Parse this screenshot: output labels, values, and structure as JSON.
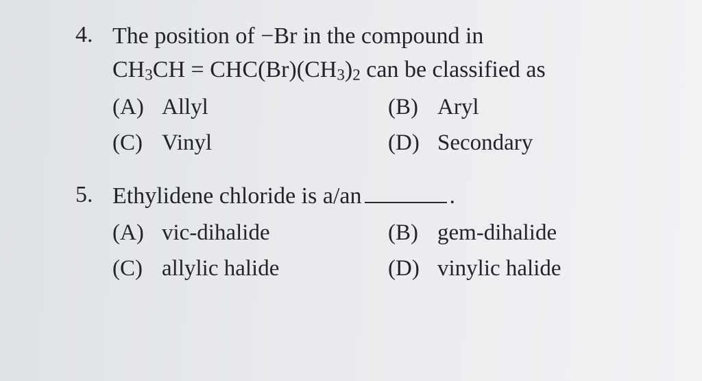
{
  "background_color": "#eceef0",
  "text_color": "#232428",
  "font_family": "Times New Roman",
  "base_fontsize_pt": 26,
  "questions": [
    {
      "number": "4.",
      "stem_html": "The position of &minus;Br in the compound in <span class=\"formula\">CH<sub>3</sub>CH = CHC(Br)(CH<sub>3</sub>)<sub>2</sub></span> can be classified as",
      "options": [
        {
          "tag": "(A)",
          "text": "Allyl"
        },
        {
          "tag": "(B)",
          "text": "Aryl"
        },
        {
          "tag": "(C)",
          "text": "Vinyl"
        },
        {
          "tag": "(D)",
          "text": "Secondary"
        }
      ]
    },
    {
      "number": "5.",
      "stem_html": "Ethylidene chloride is a/an<span class=\"blank\"></span>.",
      "options": [
        {
          "tag": "(A)",
          "text": "vic-dihalide"
        },
        {
          "tag": "(B)",
          "text": "gem-dihalide"
        },
        {
          "tag": "(C)",
          "text": "allylic halide"
        },
        {
          "tag": "(D)",
          "text": "vinylic halide"
        }
      ]
    }
  ]
}
